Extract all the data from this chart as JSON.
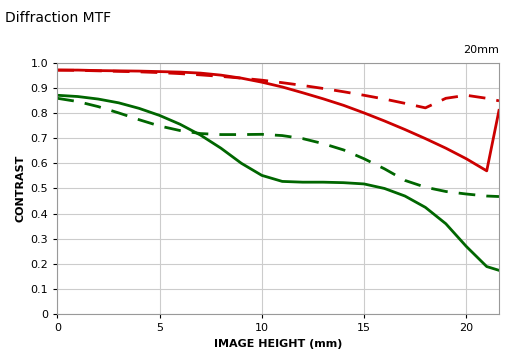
{
  "title": "Diffraction MTF",
  "annotation": "20mm",
  "xlabel": "IMAGE HEIGHT (mm)",
  "ylabel": "CONTRAST",
  "xlim": [
    0,
    21.6
  ],
  "ylim": [
    0,
    1.0
  ],
  "xticks": [
    0,
    5,
    10,
    15,
    20
  ],
  "yticks": [
    0,
    0.1,
    0.2,
    0.3,
    0.4,
    0.5,
    0.6,
    0.7,
    0.8,
    0.9,
    1
  ],
  "curves": [
    {
      "key": "red_solid",
      "x": [
        0,
        1,
        2,
        3,
        4,
        5,
        6,
        7,
        8,
        9,
        10,
        11,
        12,
        13,
        14,
        15,
        16,
        17,
        18,
        19,
        20,
        21,
        21.6
      ],
      "y": [
        0.97,
        0.97,
        0.968,
        0.967,
        0.966,
        0.964,
        0.962,
        0.958,
        0.95,
        0.938,
        0.922,
        0.903,
        0.88,
        0.856,
        0.83,
        0.8,
        0.768,
        0.734,
        0.698,
        0.66,
        0.618,
        0.57,
        0.81
      ],
      "color": "#cc0000",
      "linestyle": "solid",
      "linewidth": 2.0
    },
    {
      "key": "red_dashed",
      "x": [
        0,
        1,
        2,
        3,
        4,
        5,
        6,
        7,
        8,
        9,
        10,
        11,
        12,
        13,
        14,
        15,
        16,
        17,
        18,
        19,
        20,
        21,
        21.6
      ],
      "y": [
        0.97,
        0.969,
        0.967,
        0.965,
        0.963,
        0.96,
        0.956,
        0.951,
        0.945,
        0.938,
        0.93,
        0.92,
        0.909,
        0.897,
        0.884,
        0.87,
        0.855,
        0.838,
        0.82,
        0.858,
        0.87,
        0.858,
        0.848
      ],
      "color": "#cc0000",
      "linestyle": "dashed",
      "linewidth": 2.0
    },
    {
      "key": "green_solid",
      "x": [
        0,
        1,
        2,
        3,
        4,
        5,
        6,
        7,
        8,
        9,
        10,
        11,
        12,
        13,
        14,
        15,
        16,
        17,
        18,
        19,
        20,
        21,
        21.6
      ],
      "y": [
        0.87,
        0.865,
        0.855,
        0.84,
        0.818,
        0.79,
        0.755,
        0.712,
        0.66,
        0.6,
        0.552,
        0.528,
        0.525,
        0.525,
        0.523,
        0.518,
        0.5,
        0.47,
        0.425,
        0.36,
        0.27,
        0.19,
        0.175
      ],
      "color": "#006600",
      "linestyle": "solid",
      "linewidth": 2.0
    },
    {
      "key": "green_dashed",
      "x": [
        0,
        1,
        2,
        3,
        4,
        5,
        6,
        7,
        8,
        9,
        10,
        11,
        12,
        13,
        14,
        15,
        16,
        17,
        18,
        19,
        20,
        21,
        21.6
      ],
      "y": [
        0.858,
        0.845,
        0.825,
        0.8,
        0.773,
        0.748,
        0.73,
        0.718,
        0.714,
        0.714,
        0.715,
        0.71,
        0.698,
        0.678,
        0.653,
        0.618,
        0.578,
        0.532,
        0.505,
        0.488,
        0.478,
        0.47,
        0.468
      ],
      "color": "#006600",
      "linestyle": "dashed",
      "linewidth": 2.0
    }
  ],
  "bg_color": "#ffffff",
  "grid_color": "#cccccc",
  "title_fontsize": 10,
  "label_fontsize": 8,
  "tick_fontsize": 8
}
